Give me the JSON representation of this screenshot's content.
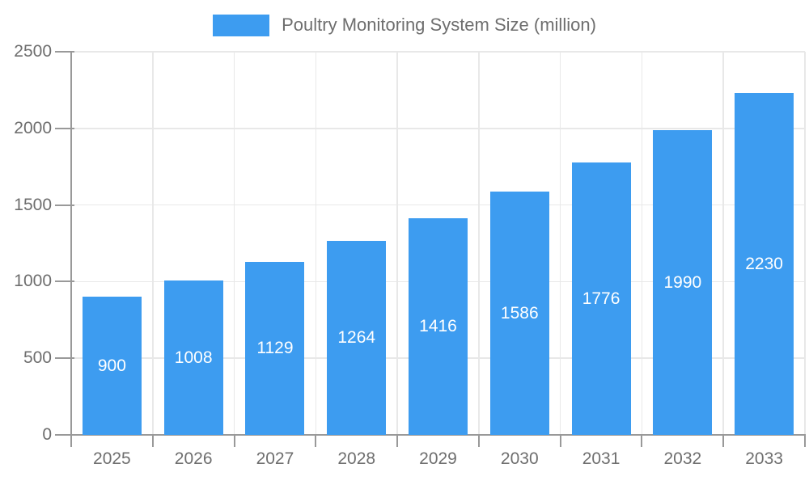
{
  "legend": {
    "label": "Poultry Monitoring System Size (million)"
  },
  "chart_data": {
    "type": "bar",
    "title": "",
    "categories": [
      "2025",
      "2026",
      "2027",
      "2028",
      "2029",
      "2030",
      "2031",
      "2032",
      "2033"
    ],
    "series": [
      {
        "name": "Poultry Monitoring System Size (million)",
        "values": [
          900,
          1008,
          1129,
          1264,
          1416,
          1586,
          1776,
          1990,
          2230
        ]
      }
    ],
    "xlabel": "",
    "ylabel": "",
    "ylim": [
      0,
      2500
    ],
    "yticks": [
      0,
      500,
      1000,
      1500,
      2000,
      2500
    ],
    "grid": true,
    "bar_labels_visible": true,
    "legend_position": "top-center",
    "colors": {
      "bar": "#3D9CF0",
      "bar_label": "#FFFFFF",
      "axis": "#999999",
      "grid": "#E8E8E8",
      "text": "#6E6E6E",
      "background": "#FFFFFF"
    }
  }
}
